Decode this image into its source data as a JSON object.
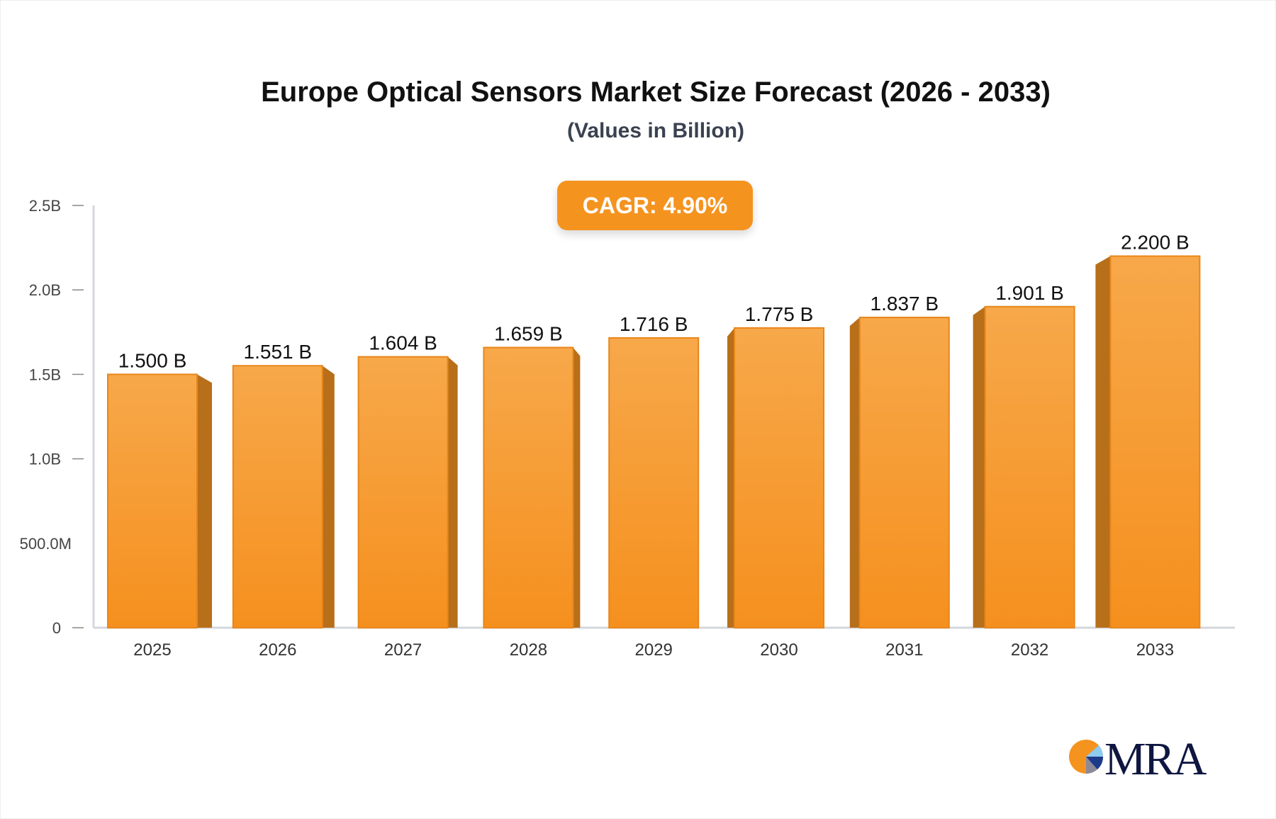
{
  "chart_data": {
    "type": "bar",
    "title": "Europe Optical Sensors Market Size Forecast (2026 - 2033)",
    "subtitle": "(Values in Billion)",
    "annotation": "CAGR: 4.90%",
    "categories": [
      "2025",
      "2026",
      "2027",
      "2028",
      "2029",
      "2030",
      "2031",
      "2032",
      "2033"
    ],
    "values": [
      1.5,
      1.551,
      1.604,
      1.659,
      1.716,
      1.775,
      1.837,
      1.901,
      2.2
    ],
    "data_labels": [
      "1.500 B",
      "1.551 B",
      "1.604 B",
      "1.659 B",
      "1.716 B",
      "1.775 B",
      "1.837 B",
      "1.901 B",
      "2.200 B"
    ],
    "unit": "B",
    "ylim": [
      0,
      2.5
    ],
    "yticks": [
      0,
      0.5,
      1.0,
      1.5,
      2.0,
      2.5
    ],
    "ytick_labels": [
      "0",
      "500.0M",
      "1.0B",
      "1.5B",
      "2.0B",
      "2.5B"
    ],
    "grid": false,
    "colors": {
      "bar_top": "#f7a84a",
      "bar_bottom": "#f5901e",
      "bar_side": "#b86f1a",
      "accent": "#f5931f"
    }
  },
  "logo": {
    "text": "MRA"
  }
}
